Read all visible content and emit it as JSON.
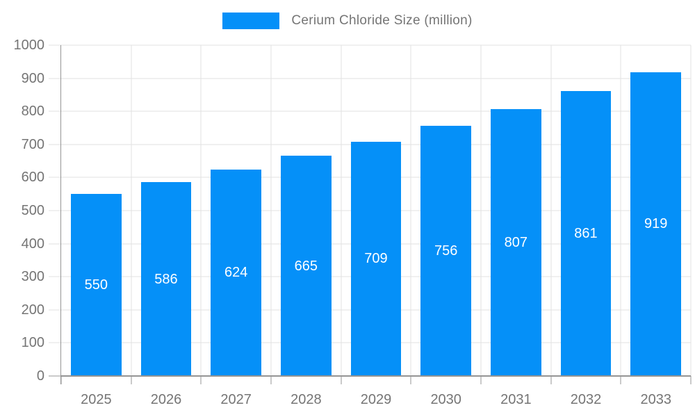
{
  "legend": {
    "label": "Cerium Chloride Size (million)"
  },
  "chart_data": {
    "type": "bar",
    "title": "",
    "categories": [
      "2025",
      "2026",
      "2027",
      "2028",
      "2029",
      "2030",
      "2031",
      "2032",
      "2033"
    ],
    "values": [
      550,
      586,
      624,
      665,
      709,
      756,
      807,
      861,
      919
    ],
    "series_name": "Cerium Chloride Size (million)",
    "xlabel": "",
    "ylabel": "",
    "ylim": [
      0,
      1000
    ],
    "yticks": [
      0,
      100,
      200,
      300,
      400,
      500,
      600,
      700,
      800,
      900,
      1000
    ],
    "grid": true,
    "legend_position": "top",
    "bar_labels_inside": true
  },
  "colors": {
    "bar": "#0590f8",
    "bar_label": "#ffffff",
    "grid": "#e2e2e2",
    "axis": "#949494",
    "text": "#757575",
    "background": "#ffffff"
  }
}
